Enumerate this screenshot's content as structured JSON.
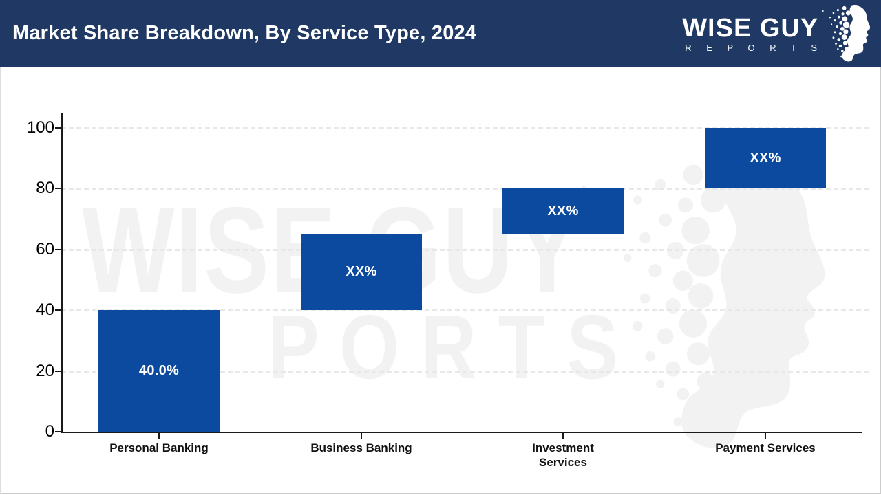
{
  "header": {
    "title": "Market Share Breakdown, By Service Type, 2024",
    "logo": {
      "line1": "WISE GUY",
      "line2": "R E P O R T S"
    }
  },
  "watermark": {
    "line1": "WISE GUY",
    "line2": "P O R T S"
  },
  "chart_data": {
    "type": "bar",
    "subtype": "floating-waterfall",
    "title": "Market Share Breakdown, By Service Type, 2024",
    "categories": [
      "Personal Banking",
      "Business Banking",
      "Investment Services",
      "Payment Services"
    ],
    "series": [
      {
        "name": "Market Share",
        "segments": [
          {
            "category": "Personal Banking",
            "start": 0,
            "end": 40,
            "label": "40.0%"
          },
          {
            "category": "Business Banking",
            "start": 40,
            "end": 65,
            "label": "XX%"
          },
          {
            "category": "Investment Services",
            "start": 65,
            "end": 80,
            "label": "XX%"
          },
          {
            "category": "Payment Services",
            "start": 80,
            "end": 100,
            "label": "XX%"
          }
        ]
      }
    ],
    "xlabel": "",
    "ylabel": "",
    "ylim": [
      0,
      100
    ],
    "yticks": [
      0,
      20,
      40,
      60,
      80,
      100
    ],
    "grid": "horizontal dashed",
    "legend": "none",
    "colors": {
      "bar": "#0b4a9f",
      "bar_label": "#ffffff",
      "axis": "#1a1a1a",
      "grid": "#e8e8e8",
      "header_bg": "#1f3864",
      "header_text": "#ffffff",
      "watermark": "#f2f2f2"
    }
  }
}
